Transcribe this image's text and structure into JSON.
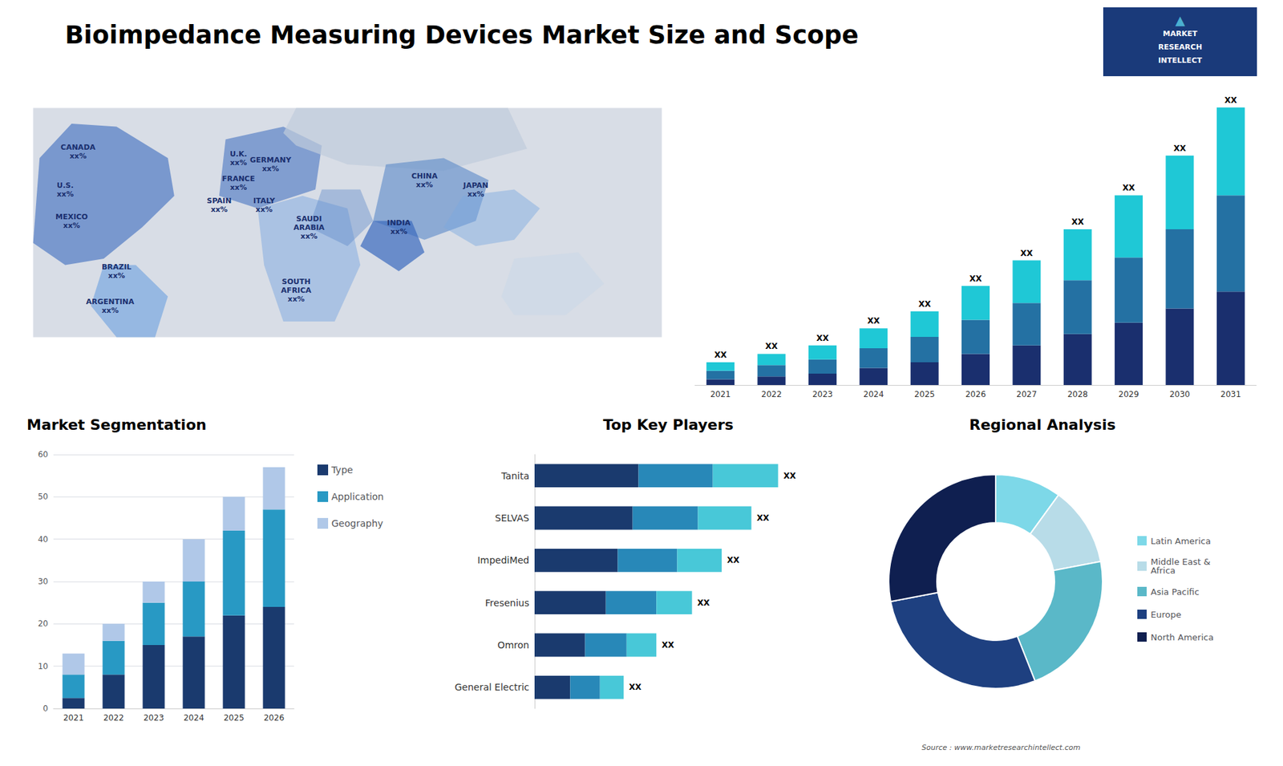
{
  "title": "Bioimpedance Measuring Devices Market Size and Scope",
  "annotations": [
    "Source : www.marketresearchintellect.com",
    "MARKET",
    "RESEARCH",
    "INTELLECT",
    "▲"
  ],
  "chart_data": [
    {
      "type": "map",
      "annotations": [
        "CANADA\nxx%",
        "U.S.\nxx%",
        "MEXICO\nxx%",
        "BRAZIL\nxx%",
        "ARGENTINA\nxx%",
        "U.K.\nxx%",
        "FRANCE\nxx%",
        "SPAIN\nxx%",
        "GERMANY\nxx%",
        "ITALY\nxx%",
        "SAUDI\nARABIA\nxx%",
        "SOUTH\nAFRICA\nxx%",
        "CHINA\nxx%",
        "INDIA\nxx%",
        "JAPAN\nxx%"
      ]
    },
    {
      "type": "bar",
      "stacked": true,
      "categories": [
        "2021",
        "2022",
        "2023",
        "2024",
        "2025",
        "2026",
        "2027",
        "2028",
        "2029",
        "2030",
        "2031"
      ],
      "series": [
        {
          "color": "#1a2f6e",
          "values": [
            2,
            3,
            4,
            6,
            8,
            11,
            14,
            18,
            22,
            27,
            33
          ]
        },
        {
          "color": "#2471a3",
          "values": [
            3,
            4,
            5,
            7,
            9,
            12,
            15,
            19,
            23,
            28,
            34
          ]
        },
        {
          "color": "#1fc8d6",
          "values": [
            3,
            4,
            5,
            7,
            9,
            12,
            15,
            18,
            22,
            26,
            31
          ]
        }
      ],
      "annotations": [
        {
          "category": "2021",
          "text": "XX"
        },
        {
          "category": "2022",
          "text": "XX"
        },
        {
          "category": "2023",
          "text": "XX"
        },
        {
          "category": "2024",
          "text": "XX"
        },
        {
          "category": "2025",
          "text": "XX"
        },
        {
          "category": "2026",
          "text": "XX"
        },
        {
          "category": "2027",
          "text": "XX"
        },
        {
          "category": "2028",
          "text": "XX"
        },
        {
          "category": "2029",
          "text": "XX"
        },
        {
          "category": "2030",
          "text": "XX"
        },
        {
          "category": "2031",
          "text": "XX"
        }
      ],
      "ylim": [
        0,
        110
      ],
      "grid": false,
      "tick_labels": "x"
    },
    {
      "type": "bar",
      "title": "Market Segmentation",
      "stacked": true,
      "categories": [
        "2021",
        "2022",
        "2023",
        "2024",
        "2025",
        "2026"
      ],
      "series": [
        {
          "name": "Type",
          "color": "#1a3a6e",
          "values": [
            2.5,
            8,
            15,
            17,
            22,
            24
          ]
        },
        {
          "name": "Application",
          "color": "#2899c4",
          "values": [
            5.5,
            8,
            10,
            13,
            20,
            23
          ]
        },
        {
          "name": "Geography",
          "color": "#b0c8e8",
          "values": [
            5,
            4,
            5,
            10,
            8,
            10
          ]
        }
      ],
      "ylim": [
        0,
        60
      ],
      "yticks": [
        0,
        10,
        20,
        30,
        40,
        50,
        60
      ],
      "grid": true,
      "legend": "right"
    },
    {
      "type": "bar",
      "title": "Top Key Players",
      "stacked": true,
      "orientation": "horizontal",
      "categories": [
        "Tanita",
        "SELVAS",
        "ImpediMed",
        "Fresenius",
        "Omron",
        "General Electric"
      ],
      "series": [
        {
          "color": "#1a3a6e",
          "values": [
            35,
            33,
            28,
            24,
            17,
            12
          ]
        },
        {
          "color": "#2888b8",
          "values": [
            25,
            22,
            20,
            17,
            14,
            10
          ]
        },
        {
          "color": "#48c8d8",
          "values": [
            22,
            18,
            15,
            12,
            10,
            8
          ]
        }
      ],
      "annotations": [
        {
          "category": "Tanita",
          "text": "XX"
        },
        {
          "category": "SELVAS",
          "text": "XX"
        },
        {
          "category": "ImpediMed",
          "text": "XX"
        },
        {
          "category": "Fresenius",
          "text": "XX"
        },
        {
          "category": "Omron",
          "text": "XX"
        },
        {
          "category": "General Electric",
          "text": "XX"
        }
      ],
      "xlim": [
        0,
        90
      ],
      "grid": false,
      "tick_labels": "y"
    },
    {
      "type": "donut",
      "title": "Regional Analysis",
      "categories": [
        "Latin America",
        "Middle East &\nAfrica",
        "Asia Pacific",
        "Europe",
        "North America"
      ],
      "values": [
        10,
        12,
        22,
        28,
        28
      ],
      "colors": [
        "#7dd8e8",
        "#b8dce8",
        "#5ab8c8",
        "#1e4080",
        "#0f1f50"
      ],
      "legend": "right"
    }
  ]
}
